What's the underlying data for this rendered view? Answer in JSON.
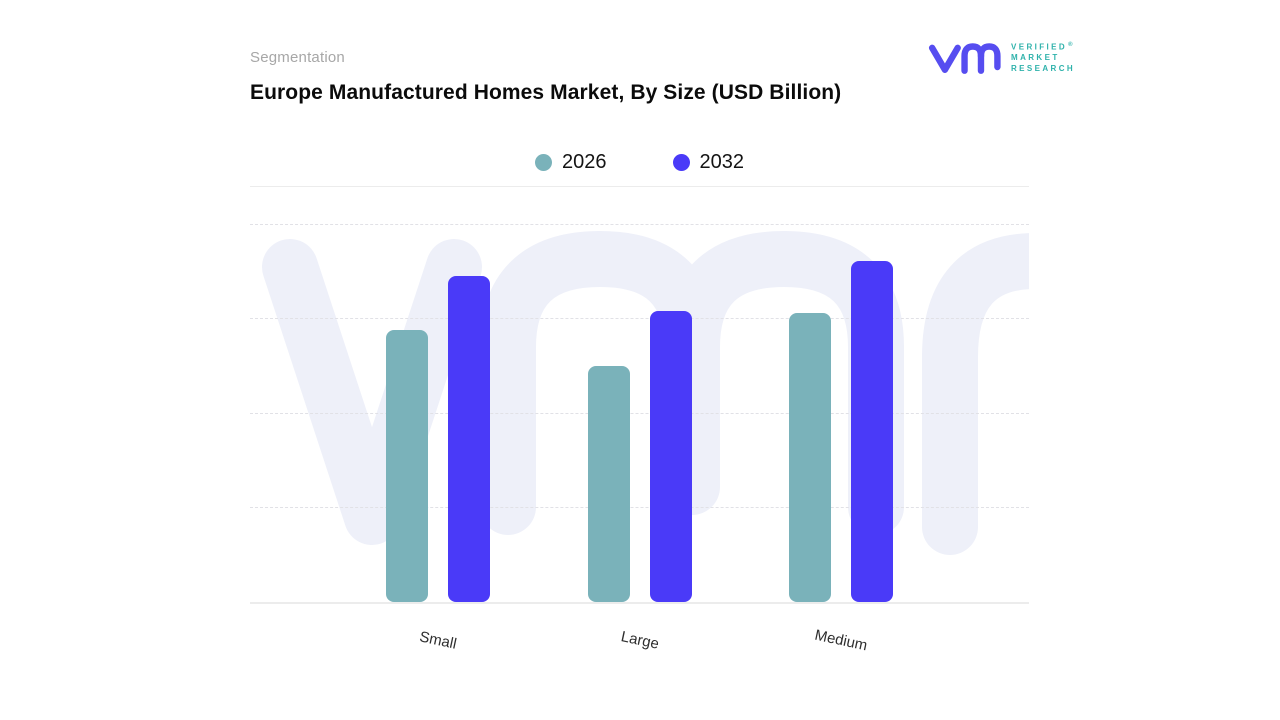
{
  "header": {
    "section_label": "Segmentation",
    "title": "Europe Manufactured Homes Market, By Size (USD Billion)"
  },
  "logo": {
    "brand_line1": "VERIFIED",
    "brand_line2": "MARKET",
    "brand_line3": "RESEARCH",
    "registered_mark": "®",
    "mark_color": "#564df0",
    "text_color": "#2fb2ab"
  },
  "chart_data": {
    "type": "bar",
    "title": "Europe Manufactured Homes Market, By Size (USD Billion)",
    "unit": "USD Billion",
    "categories": [
      "Small",
      "Large",
      "Medium"
    ],
    "series": [
      {
        "name": "2026",
        "color": "#7ab2ba",
        "values": [
          2.89,
          2.5,
          3.07
        ]
      },
      {
        "name": "2032",
        "color": "#4a3af8",
        "values": [
          3.46,
          3.09,
          3.62
        ]
      }
    ],
    "xlabel": "",
    "ylabel": "",
    "ylim": [
      0,
      4
    ],
    "y_tick_labels_visible": false,
    "gridlines": "horizontal-dashed",
    "legend_position": "top-center",
    "note": "Y-axis shows no numeric tick labels; values are estimated in gridline units (one unit per dashed gridline interval)."
  }
}
